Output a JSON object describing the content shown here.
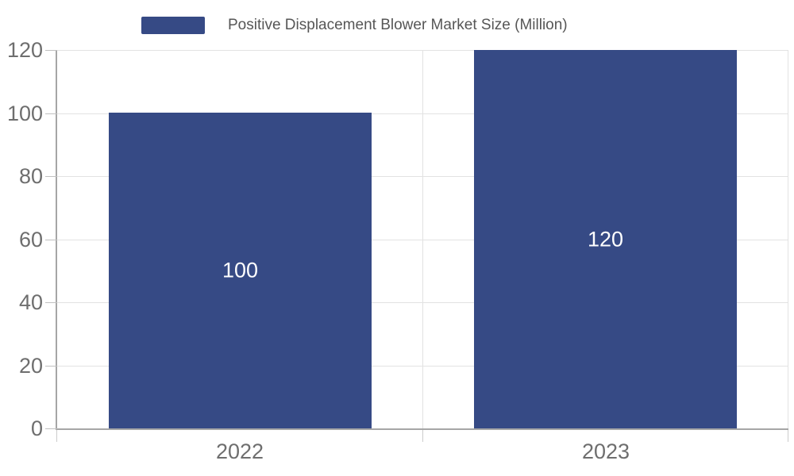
{
  "legend": {
    "label": "Positive Displacement Blower Market Size (Million)"
  },
  "chart_data": {
    "type": "bar",
    "title": "",
    "series_name": "Positive Displacement Blower Market Size (Million)",
    "categories": [
      "2022",
      "2023"
    ],
    "values": [
      100,
      120
    ],
    "value_labels": [
      "100",
      "120"
    ],
    "xlabel": "",
    "ylabel": "",
    "ylim": [
      0,
      120
    ],
    "yticks": [
      0,
      20,
      40,
      60,
      80,
      100,
      120
    ],
    "grid": true,
    "legend_position": "top",
    "bar_color": "#364a85",
    "value_label_color": "#ffffff"
  }
}
